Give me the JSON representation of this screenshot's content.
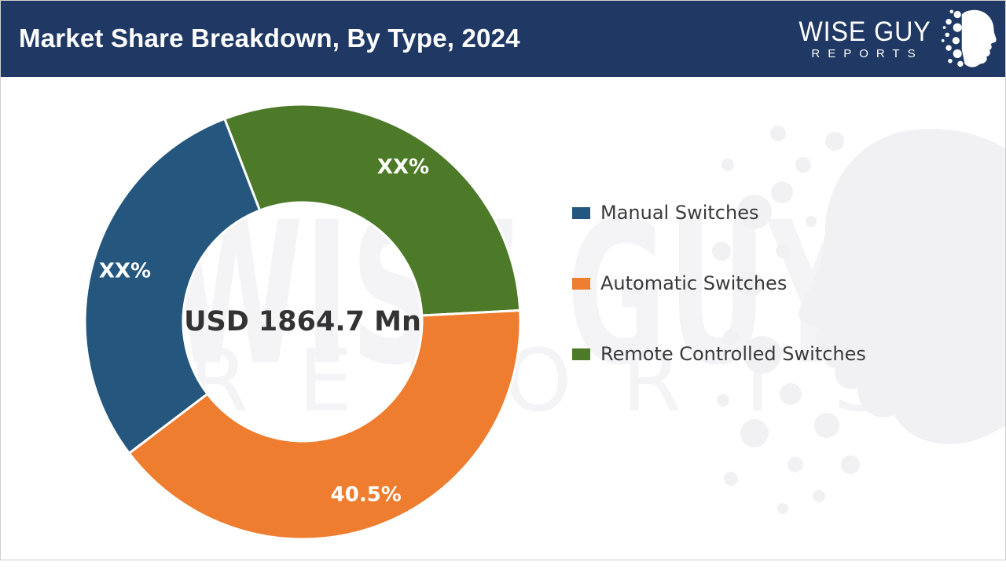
{
  "header": {
    "title": "Market Share Breakdown, By Type, 2024",
    "bg_color": "#1F3864",
    "logo": {
      "line1": "WISE GUY",
      "line2": "REPORTS"
    }
  },
  "chart_data": {
    "type": "pie",
    "donut": true,
    "title": "Market Share Breakdown, By Type, 2024",
    "center_label": "USD 1864.7 Mn",
    "start_angle_deg": -21,
    "legend_position": "right",
    "segments": [
      {
        "name": "Remote Controlled Switches",
        "value": 30.0,
        "label": "XX%",
        "color": "#4C7A28"
      },
      {
        "name": "Automatic Switches",
        "value": 40.5,
        "label": "40.5%",
        "color": "#EE7D30"
      },
      {
        "name": "Manual Switches",
        "value": 29.5,
        "label": "XX%",
        "color": "#24567E"
      }
    ]
  },
  "legend": {
    "items": [
      {
        "label": "Manual Switches",
        "color": "#24567E"
      },
      {
        "label": "Automatic Switches",
        "color": "#EE7D30"
      },
      {
        "label": "Remote Controlled Switches",
        "color": "#4C7A28"
      }
    ]
  },
  "watermark": {
    "line1": "WISE GUY",
    "line2": "R E P O R T S"
  }
}
